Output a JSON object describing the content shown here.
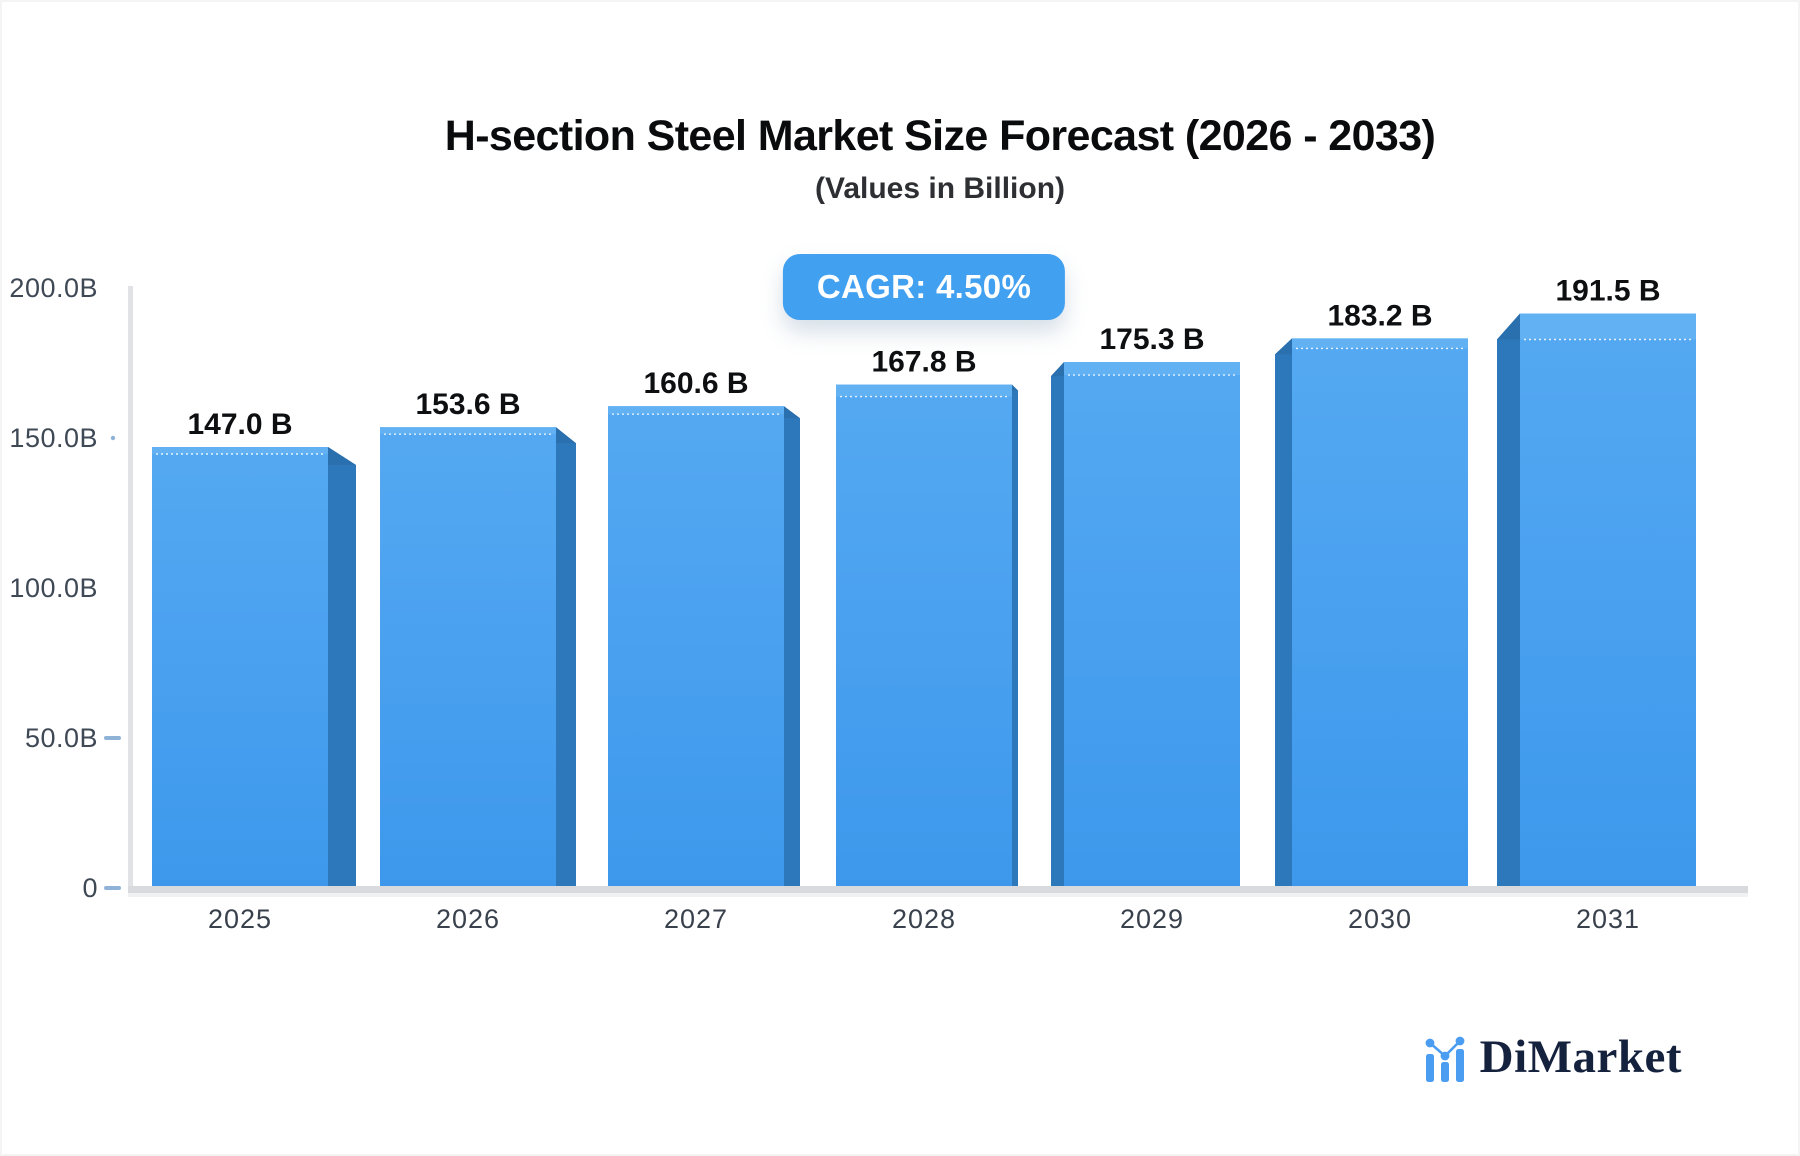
{
  "title": "H-section Steel Market Size Forecast (2026 - 2033)",
  "subtitle": "(Values in Billion)",
  "badge": {
    "label": "CAGR: 4.50%"
  },
  "logo": {
    "brand": "DiMarket"
  },
  "chart_data": {
    "type": "bar",
    "title": "H-section Steel Market Size Forecast (2026 - 2033)",
    "subtitle": "(Values in Billion)",
    "unit": "Billion",
    "cagr_percent": "4.50%",
    "categories": [
      "2025",
      "2026",
      "2027",
      "2028",
      "2029",
      "2030",
      "2031"
    ],
    "values": [
      147.0,
      153.6,
      160.6,
      167.8,
      175.3,
      183.2,
      191.5
    ],
    "value_labels": [
      "147.0 B",
      "153.6 B",
      "160.6 B",
      "167.8 B",
      "175.3 B",
      "183.2 B",
      "191.5 B"
    ],
    "y_axis": {
      "range": [
        0,
        200
      ],
      "ticks": [
        {
          "label": "200.0B",
          "value": 200,
          "marker": "none"
        },
        {
          "label": "150.0B",
          "value": 150,
          "marker": "dot"
        },
        {
          "label": "100.0B",
          "value": 100,
          "marker": "none"
        },
        {
          "label": "50.0B",
          "value": 50,
          "marker": "dash"
        },
        {
          "label": "0",
          "value": 0,
          "marker": "dash"
        }
      ]
    },
    "gridlines": "off",
    "legend": "none",
    "colors": {
      "bar_front_top": "#55a9f2",
      "bar_front_bottom": "#3d98ec",
      "bar_top_face": "#64b1f3",
      "bar_side": "#2d78ba",
      "bar_side_dark": "#2a6fae",
      "axis_line": "#e0e2e6",
      "baseline": "#d8dadd",
      "tick_marker": "#8fb3d7",
      "axis_label": "#3f4956",
      "year_label": "#39414d",
      "value_label": "#0e0f11",
      "badge_bg": "#42a0f0",
      "badge_text": "#ffffff",
      "logo_blue": "#4b9df2",
      "logo_navy": "#15223e"
    }
  }
}
